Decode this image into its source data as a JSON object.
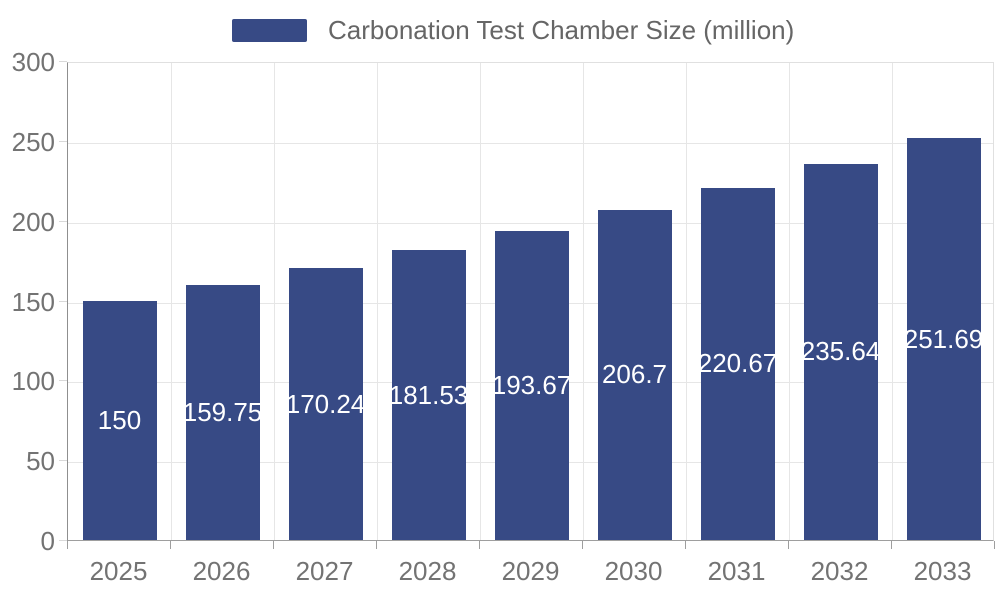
{
  "legend": {
    "label": "Carbonation Test Chamber Size (million)",
    "swatch_color": "#374a85"
  },
  "chart_data": {
    "type": "bar",
    "title": "Carbonation Test Chamber Size (million)",
    "categories": [
      "2025",
      "2026",
      "2027",
      "2028",
      "2029",
      "2030",
      "2031",
      "2032",
      "2033"
    ],
    "values": [
      150,
      159.75,
      170.24,
      181.53,
      193.67,
      206.7,
      220.67,
      235.64,
      251.69
    ],
    "value_labels": [
      "150",
      "159.75",
      "170.24",
      "181.53",
      "193.67",
      "206.7",
      "220.67",
      "235.64",
      "251.69"
    ],
    "xlabel": "",
    "ylabel": "",
    "ylim": [
      0,
      300
    ],
    "yticks": [
      0,
      50,
      100,
      150,
      200,
      250,
      300
    ],
    "grid": true,
    "legend_position": "top-center",
    "bar_color": "#374a85",
    "value_label_color": "#ffffff",
    "axis_text_color": "#737373",
    "gridline_color": "#e6e6e6"
  }
}
